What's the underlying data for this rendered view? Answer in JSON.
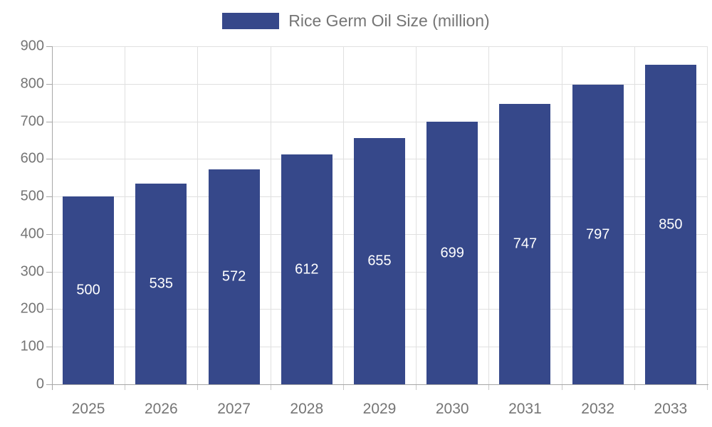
{
  "chart_data": {
    "type": "bar",
    "title": "Rice Germ Oil Size (million)",
    "legend": {
      "label": "Rice Germ Oil Size (million)",
      "position": "top-center"
    },
    "categories": [
      "2025",
      "2026",
      "2027",
      "2028",
      "2029",
      "2030",
      "2031",
      "2032",
      "2033"
    ],
    "series": [
      {
        "name": "Rice Germ Oil Size (million)",
        "values": [
          500,
          535,
          572,
          612,
          655,
          699,
          747,
          797,
          850
        ]
      }
    ],
    "data_labels": [
      "500",
      "535",
      "572",
      "612",
      "655",
      "699",
      "747",
      "797",
      "850"
    ],
    "xlabel": "",
    "ylabel": "",
    "ylim": [
      0,
      900
    ],
    "yticks": [
      0,
      100,
      200,
      300,
      400,
      500,
      600,
      700,
      800,
      900
    ],
    "grid": true,
    "colors": {
      "bar": "#36488A",
      "bar_label": "#ffffff",
      "axis_text": "#757575",
      "grid_line": "#e0e0e0",
      "axis_line": "#a6a6a6",
      "background": "#ffffff"
    }
  }
}
